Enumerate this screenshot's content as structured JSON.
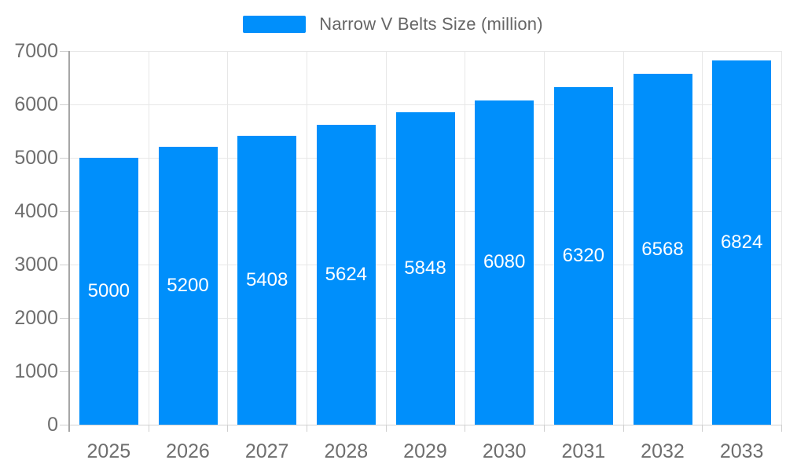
{
  "chart_data": {
    "type": "bar",
    "title": "Narrow V Belts Size (million)",
    "categories": [
      "2025",
      "2026",
      "2027",
      "2028",
      "2029",
      "2030",
      "2031",
      "2032",
      "2033"
    ],
    "values": [
      5000,
      5200,
      5408,
      5624,
      5848,
      6080,
      6320,
      6568,
      6824
    ],
    "xlabel": "",
    "ylabel": "",
    "ylim": [
      0,
      7000
    ],
    "ytick_step": 1000,
    "yticks": [
      0,
      1000,
      2000,
      3000,
      4000,
      5000,
      6000,
      7000
    ],
    "grid": true,
    "legend_position": "top-center",
    "data_labels": "inside-center",
    "colors": {
      "bar": "#008FFB",
      "data_label": "#ffffff",
      "gridline": "#e7e7e7",
      "baseline": "#d2d2d2",
      "axis_line": "#a6a6a6",
      "tick": "#cfcfcf",
      "axis_label": "#6e6e6e",
      "legend_text": "#666666",
      "background": "#ffffff"
    }
  }
}
